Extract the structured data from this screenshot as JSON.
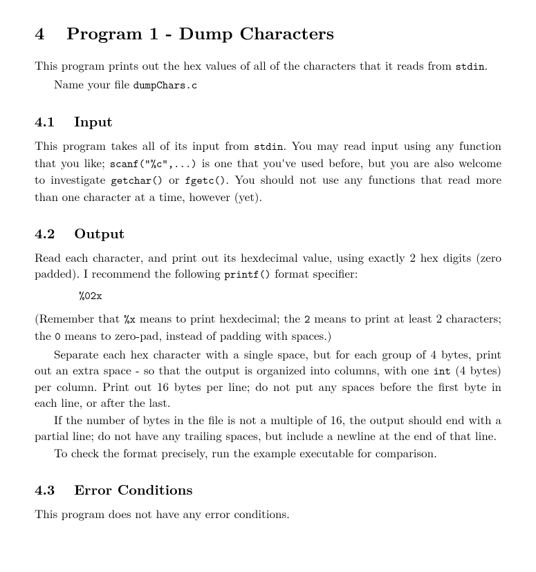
{
  "section": {
    "number": "4",
    "title": "Program 1 - Dump Characters"
  },
  "intro": {
    "p1_a": "This program prints out the hex values of all of the characters that it reads from ",
    "p1_code": "stdin",
    "p1_b": ".",
    "p2_a": "Name your file ",
    "p2_code": "dumpChars.c"
  },
  "sub1": {
    "number": "4.1",
    "title": "Input",
    "p_a": "This program takes all of its input from ",
    "c1": "stdin",
    "p_b": ". You may read input using any function that you like; ",
    "c2": "scanf(\"%c\",...)",
    "p_c": " is one that you've used before, but you are also welcome to investigate ",
    "c3": "getchar()",
    "p_d": " or ",
    "c4": "fgetc()",
    "p_e": ". You should not use any functions that read more than one character at a time, however (yet)."
  },
  "sub2": {
    "number": "4.2",
    "title": "Output",
    "p1_a": "Read each character, and print out its hexdecimal value, using exactly 2 hex digits (zero padded). I recommend the following ",
    "p1_code": "printf()",
    "p1_b": " format specifier:",
    "format": "%02x",
    "p2_a": "(Remember that ",
    "p2_c1": "%x",
    "p2_b": " means to print hexdecimal; the ",
    "p2_c2": "2",
    "p2_c": " means to print at least 2 characters; the ",
    "p2_c3": "0",
    "p2_d": " means to zero-pad, instead of padding with spaces.)",
    "p3_a": "Separate each hex character with a single space, but for each group of 4 bytes, print out an extra space - so that the output is organized into columns, with one ",
    "p3_code": "int",
    "p3_b": " (4 bytes) per column. Print out 16 bytes per line; do not put any spaces before the first byte in each line, or after the last.",
    "p4": "If the number of bytes in the file is not a multiple of 16, the output should end with a partial line; do not have any trailing spaces, but include a newline at the end of that line.",
    "p5": "To check the format precisely, run the example executable for comparison."
  },
  "sub3": {
    "number": "4.3",
    "title": "Error Conditions",
    "p": "This program does not have any error conditions."
  }
}
